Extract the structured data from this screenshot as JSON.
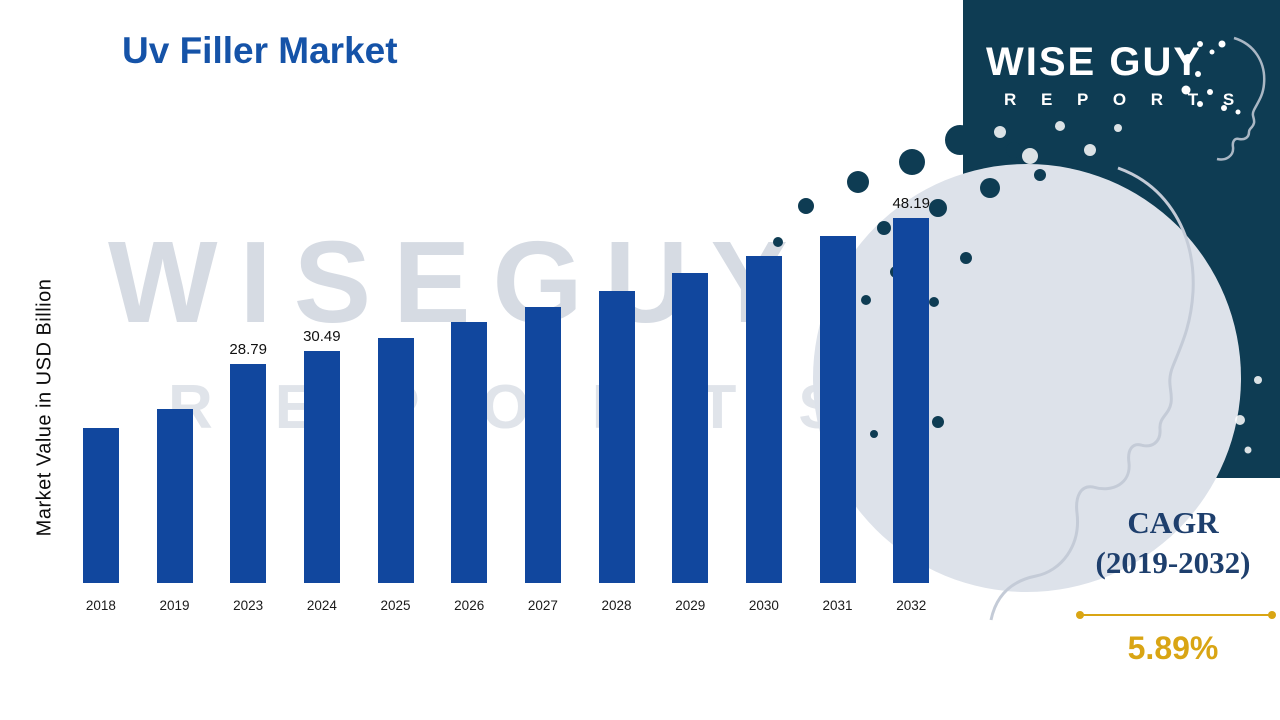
{
  "title": "Uv Filler Market",
  "title_color": "#1553a8",
  "watermark": {
    "line1": "WISEGUY",
    "line2": "REPORTS"
  },
  "brand": {
    "name": "WISE GUY",
    "reports": "R E P O R T S",
    "panel_color": "#0e3c53"
  },
  "chart_data": {
    "type": "bar",
    "title": "Uv Filler Market",
    "xlabel": "",
    "ylabel": "Market Value in USD Billion",
    "ylim": [
      0,
      50
    ],
    "grid": false,
    "legend": "none",
    "bar_color": "#11479e",
    "categories": [
      "2018",
      "2019",
      "2023",
      "2024",
      "2025",
      "2026",
      "2027",
      "2028",
      "2029",
      "2030",
      "2031",
      "2032"
    ],
    "values": [
      20.4,
      22.9,
      28.79,
      30.49,
      32.3,
      34.3,
      36.3,
      38.4,
      40.8,
      43.0,
      45.7,
      48.19
    ],
    "value_labels": {
      "2023": "28.79",
      "2024": "30.49",
      "2032": "48.19"
    }
  },
  "cagr": {
    "label": "CAGR",
    "period": "(2019-2032)",
    "value": "5.89%",
    "accent_color": "#d9a514",
    "text_color": "#1e3f6d"
  }
}
